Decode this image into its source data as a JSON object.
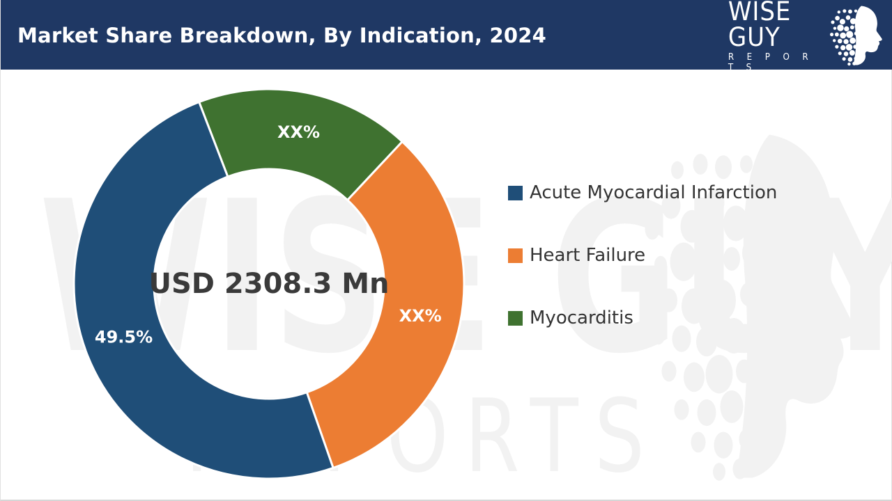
{
  "header": {
    "title": "Market Share Breakdown, By Indication, 2024",
    "bg_color": "#1F3864",
    "logo": {
      "line1": "WISE GUY",
      "line2": "R E P O R T S"
    }
  },
  "watermark": {
    "line1": "WISE GUY",
    "line2": "REPORTS"
  },
  "chart_data": {
    "type": "pie",
    "donut": true,
    "title": "Market Share Breakdown, By Indication, 2024",
    "center_label": "USD 2308.3 Mn",
    "start_angle_deg": -21,
    "clockwise": true,
    "legend_position": "right",
    "segments": [
      {
        "name": "Myocarditis",
        "label": "XX%",
        "percent": 17.8,
        "color": "#3F7230"
      },
      {
        "name": "Heart Failure",
        "label": "XX%",
        "percent": 32.7,
        "color": "#EC7D33"
      },
      {
        "name": "Acute Myocardial Infarction",
        "label": "49.5%",
        "percent": 49.5,
        "color": "#1F4E78"
      }
    ]
  },
  "legend": {
    "items": [
      {
        "label": "Acute Myocardial Infarction",
        "color": "#1F4E78"
      },
      {
        "label": "Heart Failure",
        "color": "#EC7D33"
      },
      {
        "label": "Myocarditis",
        "color": "#3F7230"
      }
    ]
  }
}
